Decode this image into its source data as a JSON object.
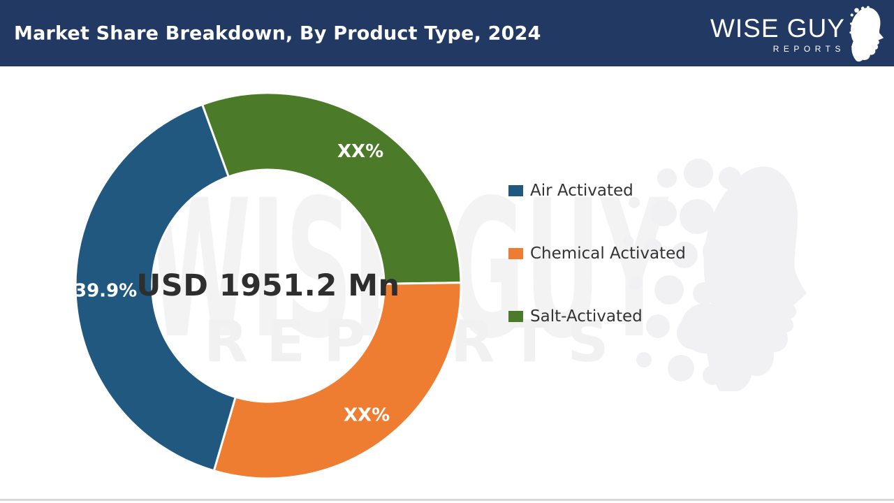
{
  "header": {
    "title": "Market Share Breakdown, By Product Type, 2024",
    "bg_color": "#223a63",
    "logo": {
      "name": "WISE GUY",
      "sub": "REPORTS"
    }
  },
  "watermark": {
    "line1": "WISE GUY",
    "line2": "REPORTS"
  },
  "chart_data": {
    "type": "pie",
    "variant": "donut",
    "title": "Market Share Breakdown, By Product Type, 2024",
    "center_label": "USD 1951.2 Mn",
    "start_angle_deg": -20,
    "direction": "clockwise",
    "inner_radius_ratio": 0.6,
    "slices": [
      {
        "label": "Salt-Activated",
        "value_pct": 30.3,
        "display_label": "XX%",
        "color": "#4b7a28"
      },
      {
        "label": "Chemical Activated",
        "value_pct": 29.8,
        "display_label": "XX%",
        "color": "#ee7d31"
      },
      {
        "label": "Air Activated",
        "value_pct": 39.9,
        "display_label": "39.9%",
        "color": "#21587f"
      }
    ],
    "legend": [
      {
        "label": "Air Activated",
        "color": "#21587f"
      },
      {
        "label": "Chemical Activated",
        "color": "#ee7d31"
      },
      {
        "label": "Salt-Activated",
        "color": "#4b7a28"
      }
    ],
    "legend_position": "right",
    "label_color": "#ffffff"
  }
}
